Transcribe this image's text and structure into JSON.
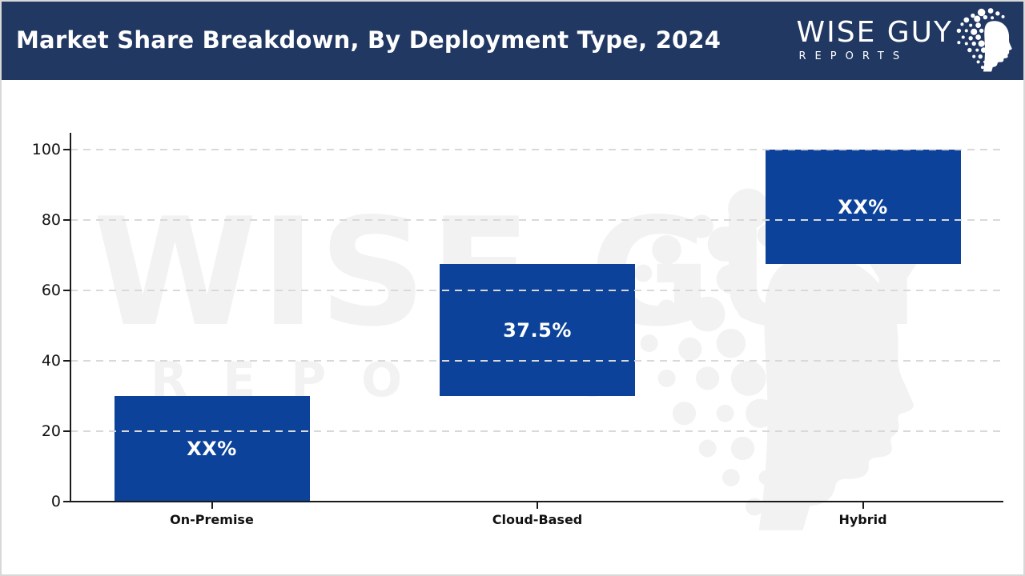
{
  "header": {
    "title": "Market Share Breakdown, By Deployment Type, 2024",
    "logo": {
      "line1": "WISE GUY",
      "line2": "REPORTS"
    }
  },
  "watermark": {
    "line1": "WISE GUY",
    "line2": "REPORTS"
  },
  "colors": {
    "header_bg": "#213863",
    "bar": "#0c4299",
    "grid": "#d9d9d9",
    "axis": "#1a1a1a",
    "watermark": "#f2f2f3",
    "frame_border": "#d8d8d8"
  },
  "chart_data": {
    "type": "bar",
    "variant": "floating-waterfall",
    "title": "Market Share Breakdown, By Deployment Type, 2024",
    "categories": [
      "On-Premise",
      "Cloud-Based",
      "Hybrid"
    ],
    "series": [
      {
        "base": [
          0,
          30,
          67.5
        ],
        "values": [
          30,
          37.5,
          32.5
        ]
      }
    ],
    "bar_labels": [
      "XX%",
      "37.5%",
      "XX%"
    ],
    "yticks": [
      0,
      20,
      40,
      60,
      80,
      100
    ],
    "ylim": [
      0,
      104.8
    ],
    "xlabel": "",
    "ylabel": "",
    "grid": "horizontal-dashed",
    "legend": "none"
  }
}
